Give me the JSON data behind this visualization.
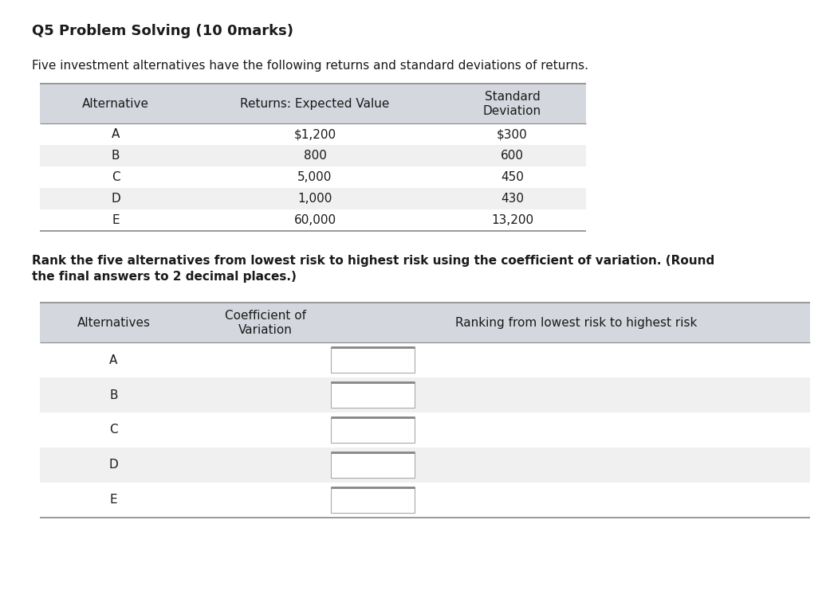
{
  "title": "Q5 Problem Solving (10 0marks)",
  "description": "Five investment alternatives have the following returns and standard deviations of returns.",
  "table1_rows": [
    [
      "A",
      "$1,200",
      "$300"
    ],
    [
      "B",
      "800",
      "600"
    ],
    [
      "C",
      "5,000",
      "450"
    ],
    [
      "D",
      "1,000",
      "430"
    ],
    [
      "E",
      "60,000",
      "13,200"
    ]
  ],
  "ranking_text_line1": "Rank the five alternatives from lowest risk to highest risk using the coefficient of variation. (Round",
  "ranking_text_line2": "the final answers to 2 decimal places.)",
  "table2_alts": [
    "A",
    "B",
    "C",
    "D",
    "E"
  ],
  "bg_color": "#ffffff",
  "header_bg": "#d4d8de",
  "alt_row_bg": "#f0f0f0",
  "white_row_bg": "#ffffff",
  "text_color": "#1a1a1a",
  "border_color_dark": "#888888",
  "border_color_light": "#aaaaaa",
  "box_top_color": "#888888",
  "font_size": 11,
  "title_font_size": 13,
  "fig_w": 10.36,
  "fig_h": 7.66,
  "dpi": 100
}
